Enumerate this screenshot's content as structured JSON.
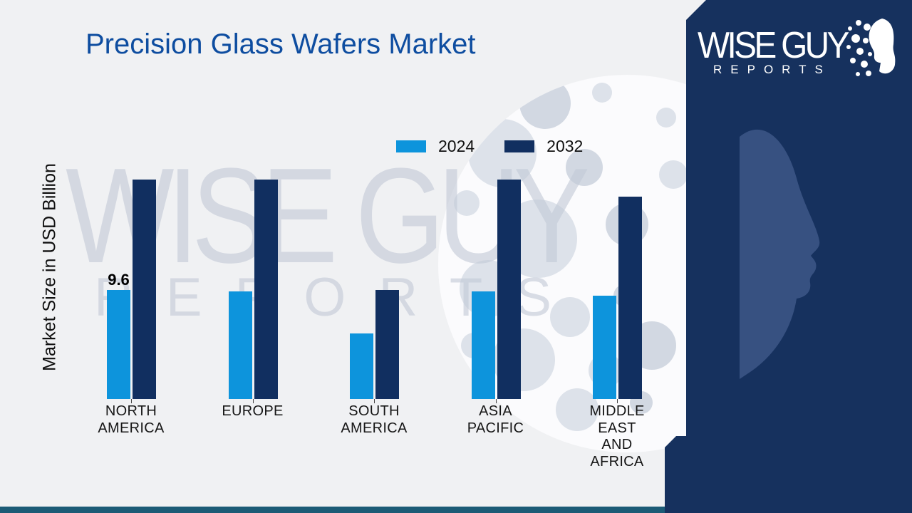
{
  "title": "Precision Glass Wafers Market",
  "y_axis_label": "Market Size in USD Billion",
  "brand": {
    "wordmark": "WISE GUY",
    "wordmark_sub": "REPORTS"
  },
  "colors": {
    "background": "#f0f1f3",
    "title_blue": "#0e4da0",
    "bar_2024": "#0d94dc",
    "bar_2032": "#112f60",
    "brand_panel_navy": "#16315e",
    "bottom_strip_teal": "#1c5b76",
    "watermark_gray": "#c3cad7"
  },
  "chart_data": {
    "type": "bar",
    "title": "Precision Glass Wafers Market",
    "ylabel": "Market Size in USD Billion",
    "xlabel": "",
    "ylim": [
      0,
      21
    ],
    "grid": false,
    "legend_position": "top",
    "categories": [
      "NORTH AMERICA",
      "EUROPE",
      "SOUTH AMERICA",
      "ASIA PACIFIC",
      "MIDDLE EAST AND AFRICA"
    ],
    "category_lines": [
      [
        "NORTH",
        "AMERICA"
      ],
      [
        "EUROPE"
      ],
      [
        "SOUTH",
        "AMERICA"
      ],
      [
        "ASIA",
        "PACIFIC"
      ],
      [
        "MIDDLE",
        "EAST",
        "AND",
        "AFRICA"
      ]
    ],
    "series": [
      {
        "name": "2024",
        "color": "#0d94dc",
        "values": [
          9.6,
          9.5,
          5.8,
          9.5,
          9.1
        ]
      },
      {
        "name": "2032",
        "color": "#112f60",
        "values": [
          19.3,
          19.3,
          9.6,
          19.3,
          17.8
        ]
      }
    ],
    "data_labels": [
      {
        "series_index": 0,
        "category_index": 0,
        "text": "9.6"
      }
    ]
  }
}
